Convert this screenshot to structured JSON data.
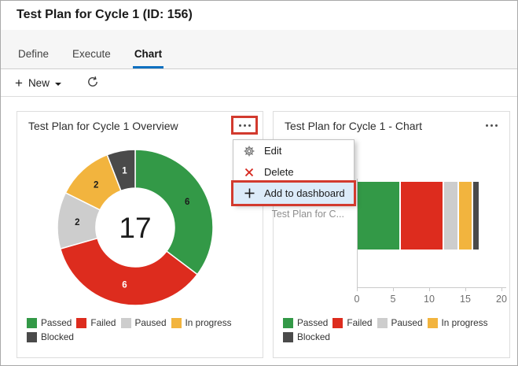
{
  "header": {
    "title": "Test Plan for Cycle 1 (ID: 156)"
  },
  "tabs": [
    {
      "label": "Define",
      "active": false
    },
    {
      "label": "Execute",
      "active": false
    },
    {
      "label": "Chart",
      "active": true
    }
  ],
  "toolbar": {
    "new_label": "New",
    "new_icon": "plus-icon",
    "new_chevron_icon": "chevron-down-icon",
    "refresh_icon": "refresh-icon"
  },
  "context_menu": {
    "items": [
      {
        "icon": "gear-icon",
        "label": "Edit",
        "highlighted": false
      },
      {
        "icon": "delete-x-icon",
        "label": "Delete",
        "highlighted": false
      },
      {
        "icon": "plus-icon",
        "label": "Add to dashboard",
        "highlighted": true
      }
    ]
  },
  "colors": {
    "passed_green": "#339947",
    "failed_red": "#DD2C1E",
    "paused_gray": "#CDCDCD",
    "in_progress_amber": "#F2B43E",
    "blocked_dark_gray": "#4A4A4A",
    "tab_underline_blue": "#0E70C0",
    "menu_highlight_blue": "#DCEBF9",
    "callout_red": "#D23A2E"
  },
  "chart_data": [
    {
      "type": "pie",
      "subtype": "donut",
      "title": "Test Plan for Cycle 1 Overview",
      "categories": [
        "Passed",
        "Failed",
        "Paused",
        "In progress",
        "Blocked"
      ],
      "values": [
        6,
        6,
        2,
        2,
        1
      ],
      "total": 17,
      "center_label": "17",
      "colors": [
        "#339947",
        "#DD2C1E",
        "#CDCDCD",
        "#F2B43E",
        "#4A4A4A"
      ],
      "slice_label_colors": [
        "#1b1b1b",
        "#ffffff",
        "#1b1b1b",
        "#1b1b1b",
        "#ffffff"
      ],
      "legend_position": "bottom"
    },
    {
      "type": "bar",
      "subtype": "horizontal-stacked",
      "title": "Test Plan for Cycle 1 - Chart",
      "category_label": "Test Plan for C...",
      "categories": [
        "Passed",
        "Failed",
        "Paused",
        "In progress",
        "Blocked"
      ],
      "series": [
        {
          "name": "Passed",
          "value": 6
        },
        {
          "name": "Failed",
          "value": 6
        },
        {
          "name": "Paused",
          "value": 2
        },
        {
          "name": "In progress",
          "value": 2
        },
        {
          "name": "Blocked",
          "value": 1
        }
      ],
      "colors": [
        "#339947",
        "#DD2C1E",
        "#CDCDCD",
        "#F2B43E",
        "#4A4A4A"
      ],
      "x_ticks": [
        0,
        5,
        10,
        15,
        20
      ],
      "xlim": [
        0,
        20
      ],
      "grid": false,
      "legend_position": "bottom"
    }
  ]
}
